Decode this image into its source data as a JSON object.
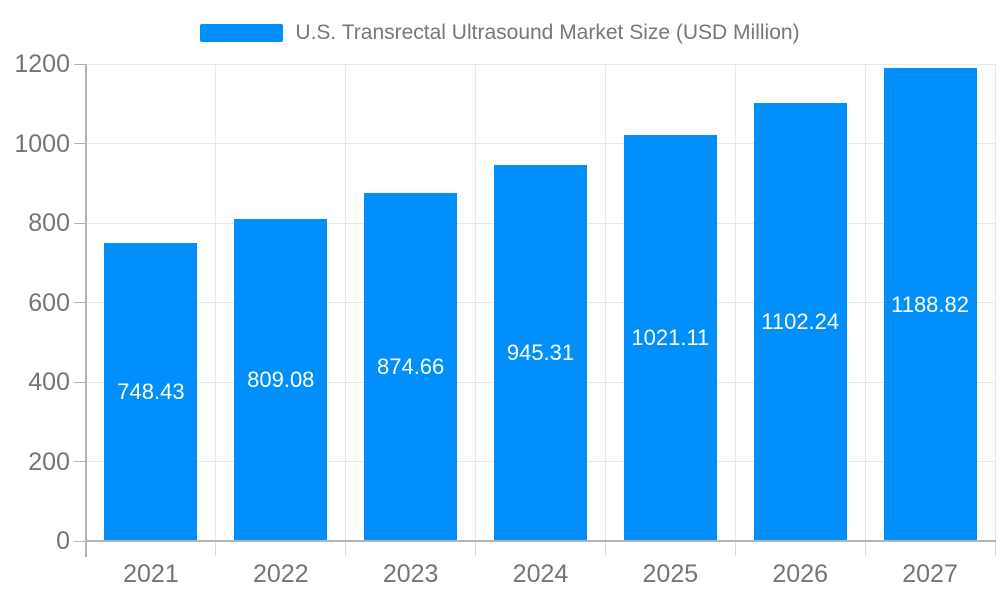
{
  "legend": {
    "label": "U.S. Transrectal Ultrasound Market Size (USD Million)",
    "marker_color": "#008FFB"
  },
  "chart_data": {
    "type": "bar",
    "title": "U.S. Transrectal Ultrasound Market Size (USD Million)",
    "categories": [
      "2021",
      "2022",
      "2023",
      "2024",
      "2025",
      "2026",
      "2027"
    ],
    "values": [
      748.43,
      809.08,
      874.66,
      945.31,
      1021.11,
      1102.24,
      1188.82
    ],
    "value_labels": [
      "748.43",
      "809.08",
      "874.66",
      "945.31",
      "1021.11",
      "1102.24",
      "1188.82"
    ],
    "xlabel": "",
    "ylabel": "",
    "ylim": [
      0,
      1200
    ],
    "yticks": [
      0,
      200,
      400,
      600,
      800,
      1000,
      1200
    ],
    "grid": true,
    "legend_position": "top",
    "bar_color": "#008FFB",
    "value_label_color": "#ffffff",
    "axis_text_color": "#757575",
    "gridline_color": "#e8e8e8",
    "axis_line_color": "#b3b3b3"
  }
}
